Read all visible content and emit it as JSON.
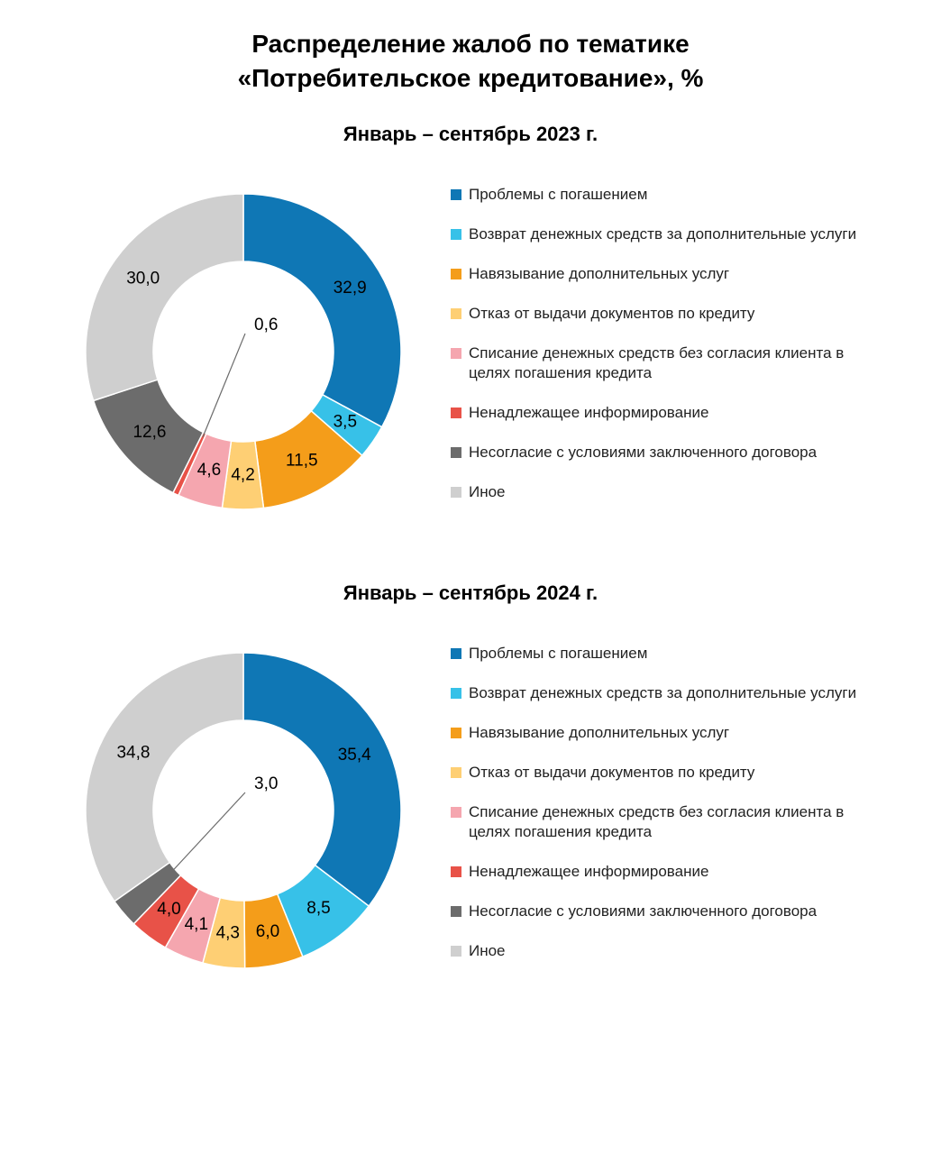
{
  "title_line1": "Распределение жалоб по тематике",
  "title_line2": "«Потребительское кредитование», %",
  "title_fontsize": 28,
  "colors": {
    "c1": "#0f77b5",
    "c2": "#37c1e8",
    "c3": "#f49d1a",
    "c4": "#fecf74",
    "c5": "#f5a6af",
    "c6": "#e85248",
    "c7": "#6c6c6c",
    "c8": "#cfcfcf"
  },
  "legend_items": [
    {
      "key": "c1",
      "label": "Проблемы с погашением"
    },
    {
      "key": "c2",
      "label": "Возврат денежных средств за дополнительные услуги"
    },
    {
      "key": "c3",
      "label": "Навязывание дополнительных услуг"
    },
    {
      "key": "c4",
      "label": "Отказ от выдачи документов по кредиту"
    },
    {
      "key": "c5",
      "label": "Списание денежных средств без согласия клиента в целях погашения кредита"
    },
    {
      "key": "c6",
      "label": "Ненадлежащее информирование"
    },
    {
      "key": "c7",
      "label": "Несогласие с условиями заключенного договора"
    },
    {
      "key": "c8",
      "label": "Иное"
    }
  ],
  "charts": [
    {
      "subtitle": "Январь – сентябрь 2023 г.",
      "type": "donut",
      "inner_radius": 100,
      "outer_radius": 175,
      "size": 420,
      "start_angle_deg": -90,
      "value_fontsize": 19,
      "value_color": "#000000",
      "leader_color": "#6c6c6c",
      "background_color": "#ffffff",
      "slices": [
        {
          "key": "c1",
          "value": 32.9,
          "label": "32,9",
          "label_pos": "inside"
        },
        {
          "key": "c2",
          "value": 3.5,
          "label": "3,5",
          "label_pos": "inside"
        },
        {
          "key": "c3",
          "value": 11.5,
          "label": "11,5",
          "label_pos": "inside"
        },
        {
          "key": "c4",
          "value": 4.2,
          "label": "4,2",
          "label_pos": "inside"
        },
        {
          "key": "c5",
          "value": 4.6,
          "label": "4,6",
          "label_pos": "inside"
        },
        {
          "key": "c6",
          "value": 0.6,
          "label": "0,6",
          "label_pos": "leader"
        },
        {
          "key": "c7",
          "value": 12.6,
          "label": "12,6",
          "label_pos": "inside"
        },
        {
          "key": "c8",
          "value": 30.0,
          "label": "30,0",
          "label_pos": "inside"
        }
      ]
    },
    {
      "subtitle": "Январь – сентябрь 2024 г.",
      "type": "donut",
      "inner_radius": 100,
      "outer_radius": 175,
      "size": 420,
      "start_angle_deg": -90,
      "value_fontsize": 19,
      "value_color": "#000000",
      "leader_color": "#6c6c6c",
      "background_color": "#ffffff",
      "slices": [
        {
          "key": "c1",
          "value": 35.4,
          "label": "35,4",
          "label_pos": "inside"
        },
        {
          "key": "c2",
          "value": 8.5,
          "label": "8,5",
          "label_pos": "inside"
        },
        {
          "key": "c3",
          "value": 6.0,
          "label": "6,0",
          "label_pos": "inside"
        },
        {
          "key": "c4",
          "value": 4.3,
          "label": "4,3",
          "label_pos": "inside"
        },
        {
          "key": "c5",
          "value": 4.1,
          "label": "4,1",
          "label_pos": "inside"
        },
        {
          "key": "c6",
          "value": 4.0,
          "label": "4,0",
          "label_pos": "inside"
        },
        {
          "key": "c7",
          "value": 3.0,
          "label": "3,0",
          "label_pos": "leader"
        },
        {
          "key": "c8",
          "value": 34.8,
          "label": "34,8",
          "label_pos": "inside"
        }
      ]
    }
  ]
}
